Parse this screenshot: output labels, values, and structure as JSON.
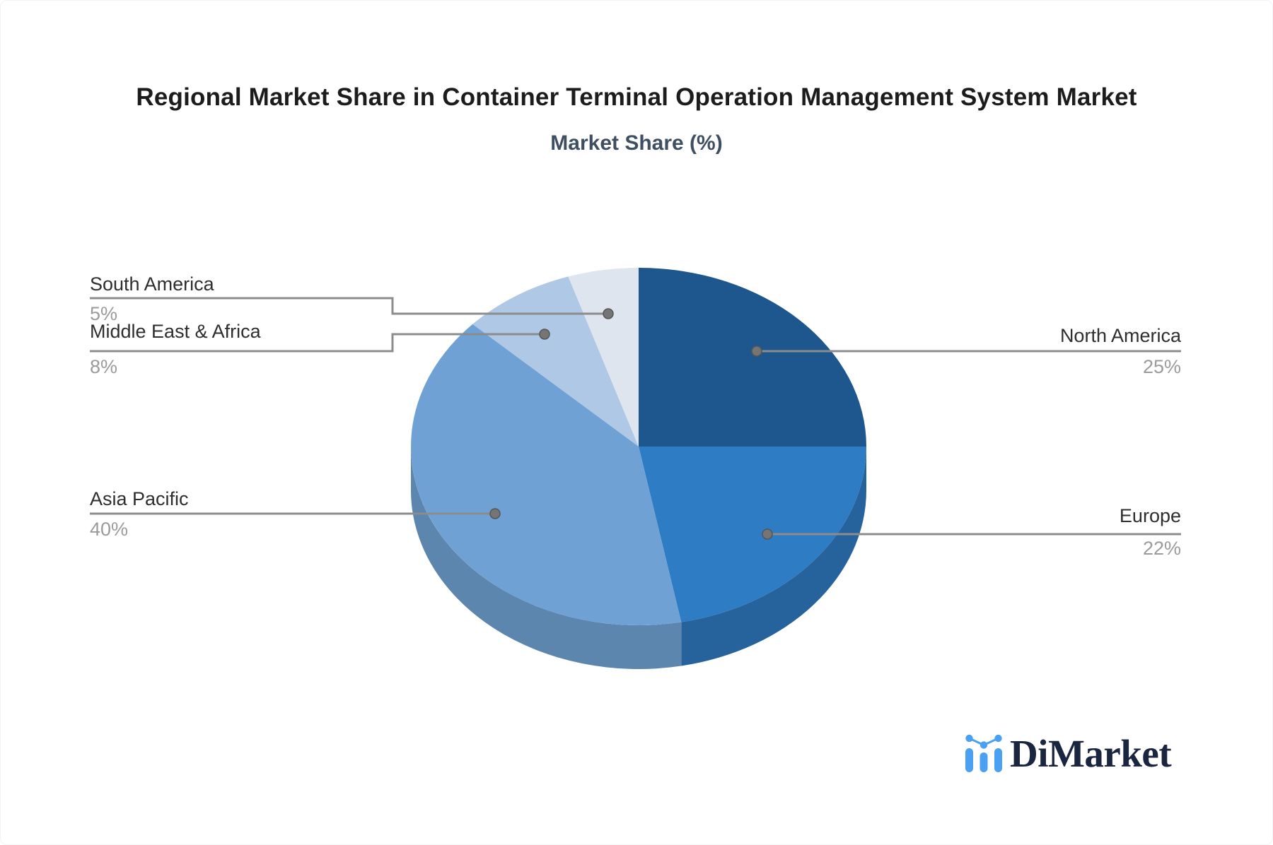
{
  "title": "Regional Market Share in Container Terminal Operation Management System Market",
  "subtitle": "Market Share (%)",
  "logo": {
    "text": "DiMarket",
    "icon": "bar-chart-logo-icon"
  },
  "colors": {
    "title_text": "#1c1c1c",
    "subtitle_text": "#3e4f61",
    "label_name_text": "#2e2e2e",
    "label_value_text": "#9b9b9b",
    "leader_line": "#8c8c8c",
    "leader_dot": "#757575",
    "logo_accent": "#4aa1f3",
    "logo_text": "#1a2540"
  },
  "chart_data": {
    "type": "pie",
    "style": "3d",
    "title": "Regional Market Share in Container Terminal Operation Management System Market",
    "subtitle": "Market Share (%)",
    "unit": "%",
    "direction": "clockwise",
    "start_angle_deg": 0,
    "legend_position": "callout-labels",
    "segments": [
      {
        "label": "North America",
        "value": 25,
        "color": "#1d578e",
        "side_color": null
      },
      {
        "label": "Europe",
        "value": 22,
        "color": "#2e7cc3",
        "side_color": "#26629c"
      },
      {
        "label": "Asia Pacific",
        "value": 40,
        "color": "#70a1d5",
        "side_color": "#5d86ae"
      },
      {
        "label": "Middle East & Africa",
        "value": 8,
        "color": "#aec8e5",
        "side_color": null
      },
      {
        "label": "South America",
        "value": 5,
        "color": "#dfe5ef",
        "side_color": null
      }
    ]
  }
}
